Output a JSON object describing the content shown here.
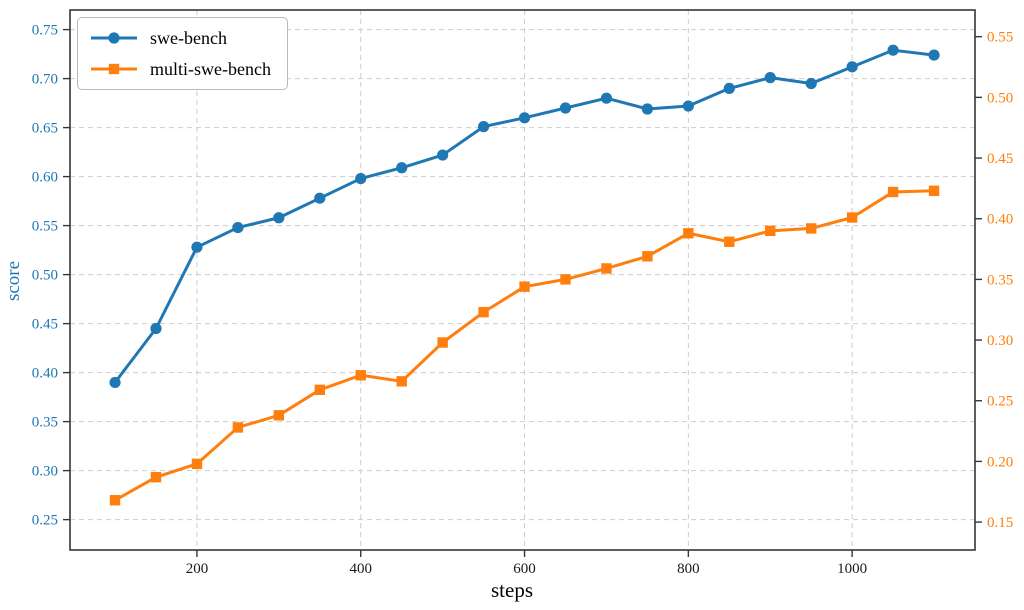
{
  "figure": {
    "background": "#ffffff"
  },
  "chart_data": {
    "type": "line",
    "xlabel": "steps",
    "ylabel": "score",
    "x": [
      100,
      150,
      200,
      250,
      300,
      350,
      400,
      450,
      500,
      550,
      600,
      650,
      700,
      750,
      800,
      850,
      900,
      950,
      1000,
      1050,
      1100
    ],
    "series": [
      {
        "name": "swe-bench",
        "axis": "left",
        "color": "#1f77b4",
        "marker": "circle",
        "values": [
          0.39,
          0.445,
          0.528,
          0.548,
          0.558,
          0.578,
          0.598,
          0.609,
          0.622,
          0.651,
          0.66,
          0.67,
          0.68,
          0.669,
          0.672,
          0.69,
          0.701,
          0.695,
          0.712,
          0.729,
          0.724
        ]
      },
      {
        "name": "multi-swe-bench",
        "axis": "right",
        "color": "#ff7f0e",
        "marker": "square",
        "values": [
          0.168,
          0.187,
          0.198,
          0.228,
          0.238,
          0.259,
          0.271,
          0.266,
          0.298,
          0.323,
          0.344,
          0.35,
          0.359,
          0.369,
          0.388,
          0.381,
          0.39,
          0.392,
          0.401,
          0.422,
          0.423
        ]
      }
    ],
    "axes": {
      "x": {
        "range": [
          45,
          1150
        ],
        "ticks": [
          200,
          400,
          600,
          800,
          1000
        ],
        "tick_labels": [
          "200",
          "400",
          "600",
          "800",
          "1000"
        ],
        "color": "#1a1a1a"
      },
      "left": {
        "range": [
          0.219,
          0.77
        ],
        "ticks": [
          0.25,
          0.3,
          0.35,
          0.4,
          0.45,
          0.5,
          0.55,
          0.6,
          0.65,
          0.7,
          0.75
        ],
        "color": "#1f77b4"
      },
      "right": {
        "range": [
          0.127,
          0.572
        ],
        "ticks": [
          0.15,
          0.2,
          0.25,
          0.3,
          0.35,
          0.4,
          0.45,
          0.5,
          0.55
        ],
        "color": "#ff7f0e"
      }
    },
    "grid": {
      "show": true,
      "color": "#cdcdcd",
      "dash": "5,4"
    },
    "legend": {
      "position": "top-left",
      "entries": [
        "swe-bench",
        "multi-swe-bench"
      ]
    },
    "spine_color": "#33373b",
    "line_width": 3
  }
}
